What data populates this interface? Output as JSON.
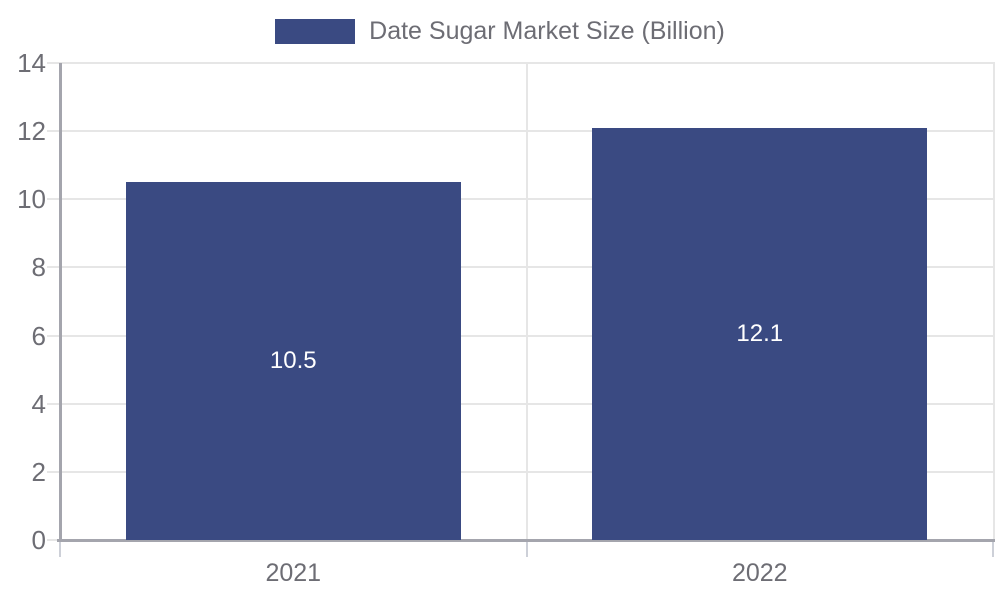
{
  "legend": {
    "label": "Date Sugar Market Size (Billion)"
  },
  "chart_data": {
    "type": "bar",
    "title": "Date Sugar Market Size (Billion)",
    "categories": [
      "2021",
      "2022"
    ],
    "series": [
      {
        "name": "Date Sugar Market Size (Billion)",
        "values": [
          10.5,
          12.1
        ]
      }
    ],
    "value_labels": [
      "10.5",
      "12.1"
    ],
    "xlabel": "",
    "ylabel": "",
    "ylim": [
      0,
      14
    ],
    "yticks": [
      0,
      2,
      4,
      6,
      8,
      10,
      12,
      14
    ],
    "grid": true,
    "legend_position": "top"
  },
  "colors": {
    "bar": "#3A4A82",
    "grid": "#e6e6e6",
    "axis": "#a4a5ad",
    "text": "#6d6d74",
    "value_label": "#ffffff",
    "background": "#ffffff"
  }
}
